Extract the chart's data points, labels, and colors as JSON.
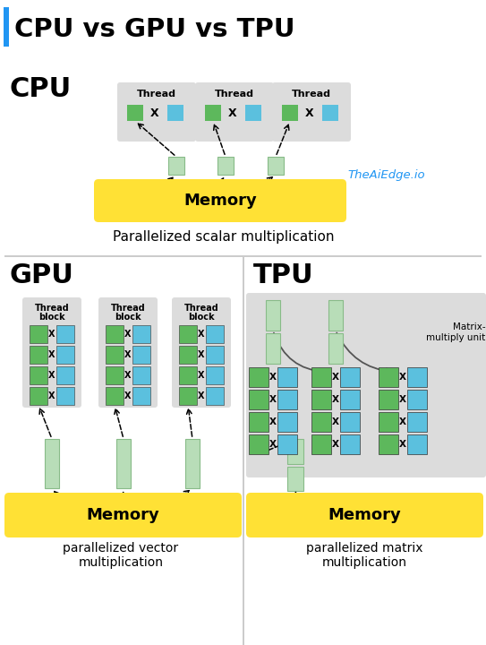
{
  "title": "CPU vs GPU vs TPU",
  "title_bar_color": "#2196F3",
  "bg_color": "#ffffff",
  "green": "#5db85c",
  "blue": "#5bc0de",
  "light_green": "#b8ddb8",
  "gray_bg": "#dcdcdc",
  "memory_color": "#FFE135",
  "watermark": "TheAiEdge.io",
  "watermark_color": "#2196F3",
  "cpu_label": "CPU",
  "gpu_label": "GPU",
  "tpu_label": "TPU",
  "cpu_desc": "Parallelized scalar multiplication",
  "gpu_desc": "parallelized vector\nmultiplication",
  "tpu_desc": "parallelized matrix\nmultiplication",
  "memory_label": "Memory",
  "matrix_unit_label": "Matrix-\nmultiply unit"
}
